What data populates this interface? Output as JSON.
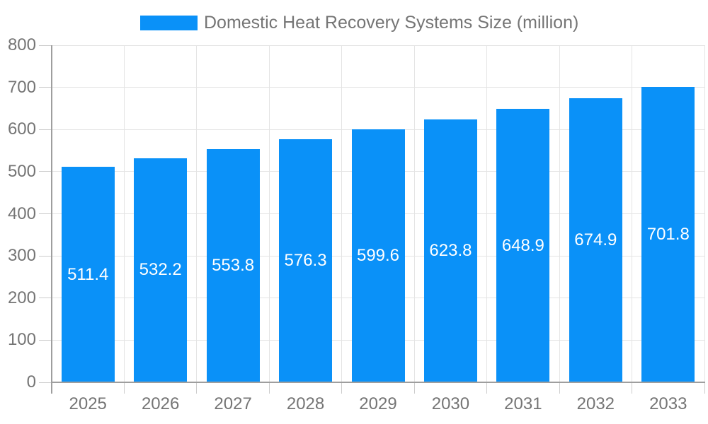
{
  "chart_data": {
    "type": "bar",
    "title": "Domestic Heat Recovery Systems Size (million)",
    "categories": [
      "2025",
      "2026",
      "2027",
      "2028",
      "2029",
      "2030",
      "2031",
      "2032",
      "2033"
    ],
    "values": [
      511.4,
      532.2,
      553.8,
      576.3,
      599.6,
      623.8,
      648.9,
      674.9,
      701.8
    ],
    "xlabel": "",
    "ylabel": "",
    "ylim": [
      0,
      800
    ],
    "ytick_step": 100,
    "grid": true,
    "legend_position": "top-center",
    "value_label_position": "inside-middle",
    "colors": {
      "bar": "#0a91f8",
      "axis": "#9e9e9e",
      "grid": "#e4e4e4",
      "tick": "#cccccc",
      "axis_label_text": "#757575",
      "value_label_text": "#ffffff",
      "background": "#ffffff"
    }
  }
}
